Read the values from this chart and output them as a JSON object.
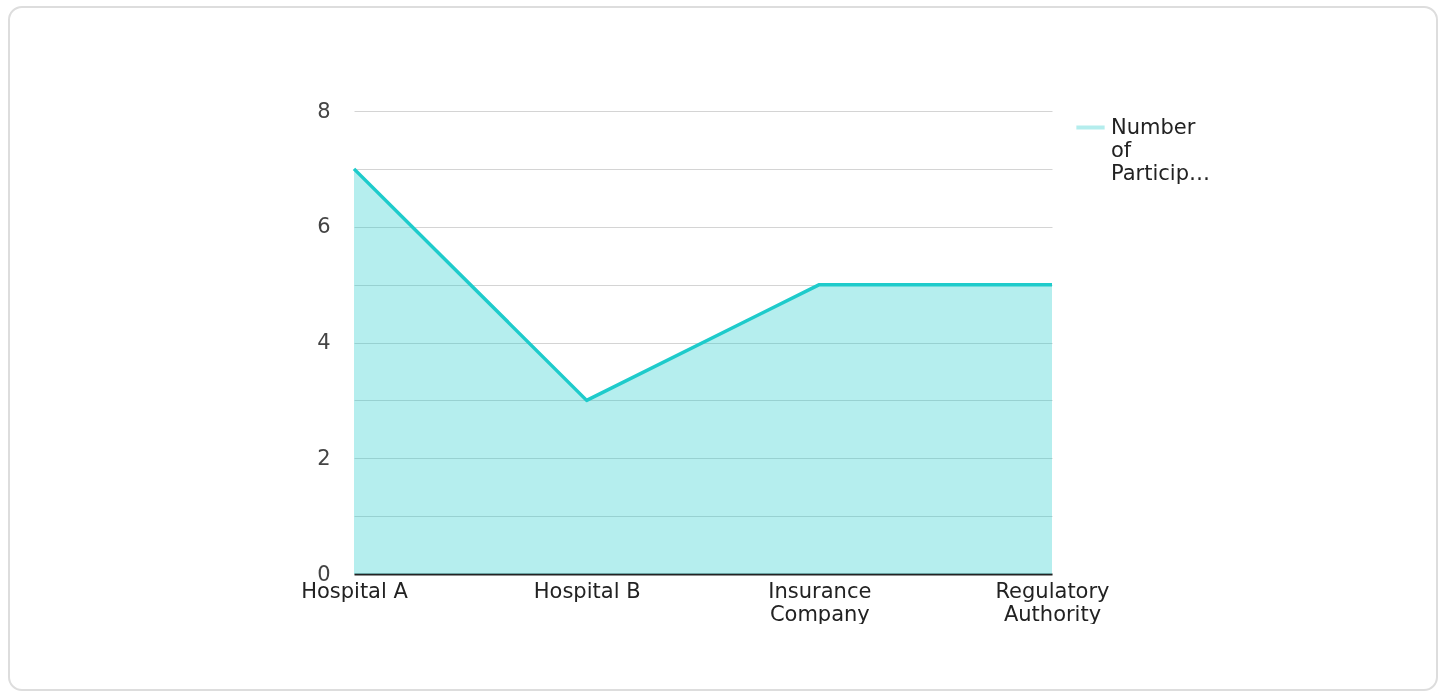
{
  "chart_data": {
    "type": "area",
    "categories": [
      "Hospital A",
      "Hospital B",
      "Insurance Company",
      "Regulatory Authority"
    ],
    "series": [
      {
        "name": "Number of Particip…",
        "color": "#1ecbcb",
        "values": [
          7,
          3,
          5,
          5
        ]
      }
    ],
    "ylim": [
      0,
      8
    ],
    "yticks": [
      0,
      {
        "value": 1,
        "label": null
      },
      2,
      {
        "value": 3,
        "label": null
      },
      4,
      {
        "value": 5,
        "label": null
      },
      6,
      {
        "value": 7,
        "label": null
      },
      8
    ],
    "grid": "y",
    "legend": "top right"
  }
}
